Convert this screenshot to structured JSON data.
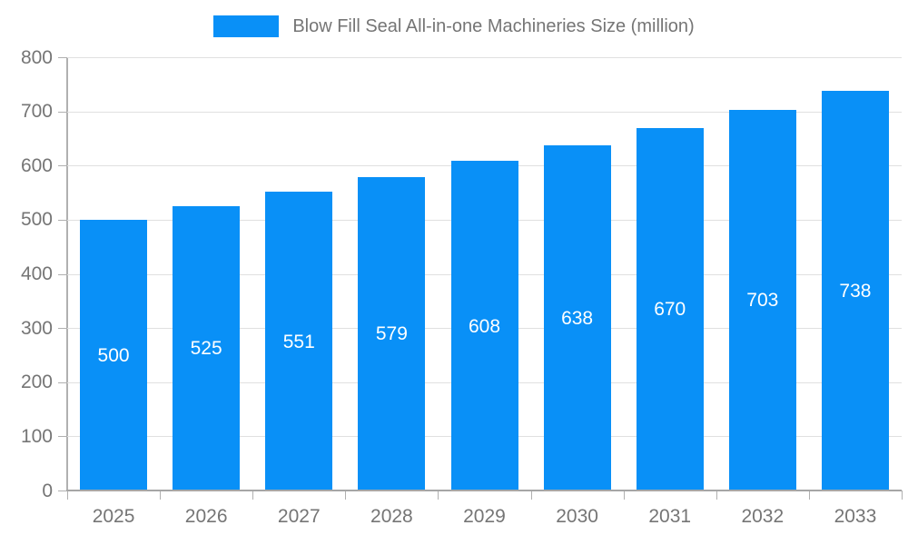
{
  "colors": {
    "bar": "#0990f7",
    "value_label": "#ffffff",
    "axis_text": "#757575",
    "gridline": "#e0e0e0",
    "axis_line": "#b0b0b0",
    "background": "#ffffff"
  },
  "legend": {
    "label": "Blow Fill Seal All-in-one Machineries Size (million)"
  },
  "chart_data": {
    "type": "bar",
    "title": "Blow Fill Seal All-in-one Machineries Size (million)",
    "categories": [
      "2025",
      "2026",
      "2027",
      "2028",
      "2029",
      "2030",
      "2031",
      "2032",
      "2033"
    ],
    "series": [
      {
        "name": "Blow Fill Seal All-in-one Machineries Size (million)",
        "values": [
          500,
          525,
          551,
          579,
          608,
          638,
          670,
          703,
          738
        ]
      }
    ],
    "value_labels_shown": true,
    "xlabel": "",
    "ylabel": "",
    "ylim": [
      0,
      800
    ],
    "y_ticks": [
      0,
      100,
      200,
      300,
      400,
      500,
      600,
      700,
      800
    ],
    "grid": true,
    "legend_position": "top"
  }
}
